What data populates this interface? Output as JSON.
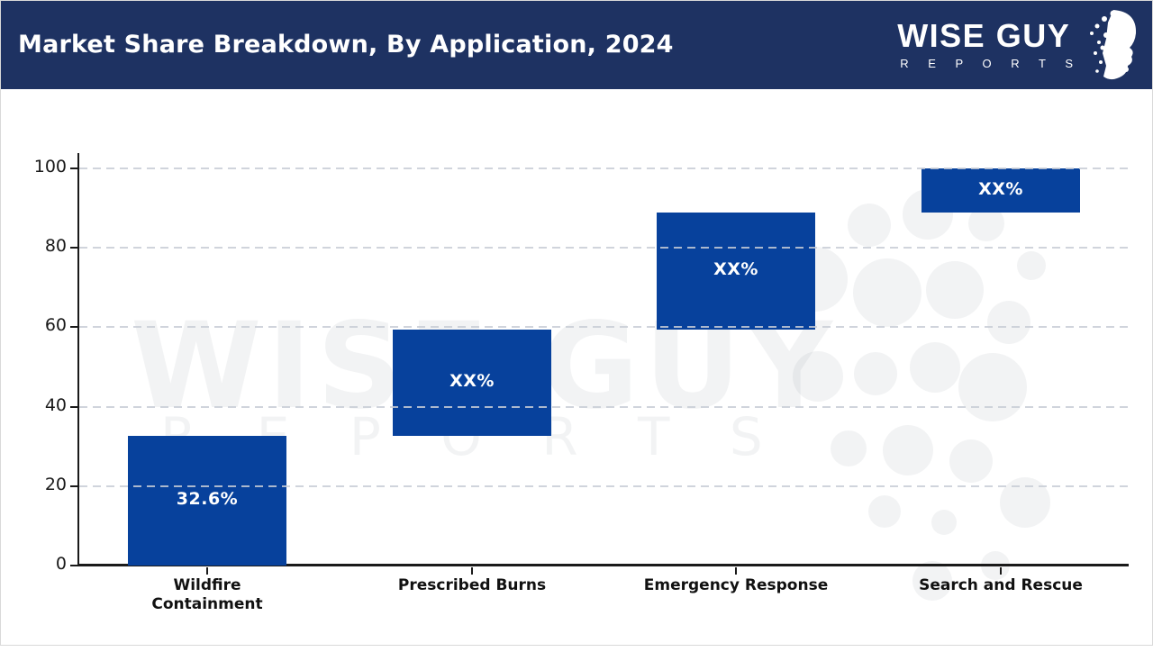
{
  "header": {
    "title": "Market Share Breakdown, By Application, 2024",
    "bg_color": "#1e3262",
    "logo": {
      "wordmark": "WISE GUY",
      "subtitle": "R E P O R T S"
    }
  },
  "watermark": {
    "wordmark": "WISE GUY",
    "subtitle": "R E P O R T S"
  },
  "chart_data": {
    "type": "bar",
    "subtype": "waterfall",
    "title": "Market Share Breakdown, By Application, 2024",
    "categories": [
      "Wildfire\nContainment",
      "Prescribed Burns",
      "Emergency Response",
      "Search and Rescue"
    ],
    "segments": [
      {
        "start": 0,
        "end": 32.6
      },
      {
        "start": 32.6,
        "end": 59.3
      },
      {
        "start": 59.3,
        "end": 88.8
      },
      {
        "start": 88.8,
        "end": 100
      }
    ],
    "bar_labels": [
      "32.6%",
      "XX%",
      "XX%",
      "XX%"
    ],
    "xlabel": "",
    "ylabel": "",
    "ylim": [
      0,
      104
    ],
    "yticks": [
      0,
      20,
      40,
      60,
      80,
      100
    ],
    "grid": "horizontal dashed",
    "bar_color": "#07419c",
    "bar_label_color": "#ffffff",
    "axis_color": "#1a1a1a",
    "gridline_color": "#cdd1d9",
    "legend": "none"
  }
}
